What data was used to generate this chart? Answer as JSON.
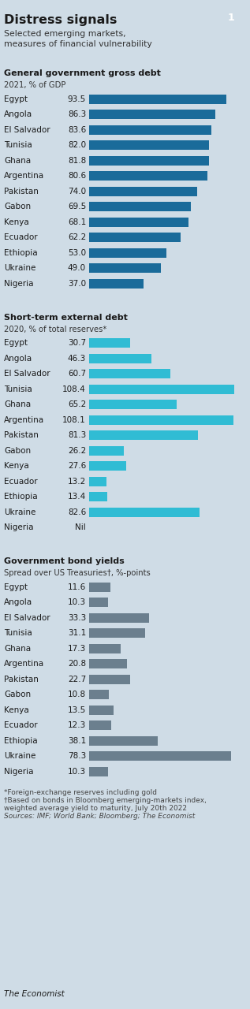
{
  "title": "Distress signals",
  "subtitle": "Selected emerging markets,\nmeasures of financial vulnerability",
  "chart_number": "1",
  "bg_color": "#cfdce6",
  "red_color": "#e03020",
  "badge_color": "#7a9db5",
  "section1": {
    "title": "General government gross debt",
    "subtitle": "2021, % of GDP",
    "bar_color": "#1a6b9a",
    "countries": [
      "Egypt",
      "Angola",
      "El Salvador",
      "Tunisia",
      "Ghana",
      "Argentina",
      "Pakistan",
      "Gabon",
      "Kenya",
      "Ecuador",
      "Ethiopia",
      "Ukraine",
      "Nigeria"
    ],
    "values": [
      93.5,
      86.3,
      83.6,
      82.0,
      81.8,
      80.6,
      74.0,
      69.5,
      68.1,
      62.2,
      53.0,
      49.0,
      37.0
    ],
    "xmax": 105
  },
  "section2": {
    "title": "Short-term external debt",
    "subtitle": "2020, % of total reserves*",
    "bar_color": "#30bcd4",
    "countries": [
      "Egypt",
      "Angola",
      "El Salvador",
      "Tunisia",
      "Ghana",
      "Argentina",
      "Pakistan",
      "Gabon",
      "Kenya",
      "Ecuador",
      "Ethiopia",
      "Ukraine",
      "Nigeria"
    ],
    "values": [
      30.7,
      46.3,
      60.7,
      108.4,
      65.2,
      108.1,
      81.3,
      26.2,
      27.6,
      13.2,
      13.4,
      82.6,
      0
    ],
    "nil_idx": 12,
    "xmax": 115
  },
  "section3": {
    "title": "Government bond yields",
    "subtitle": "Spread over US Treasuries†, %-points",
    "bar_color": "#6b7f8e",
    "countries": [
      "Egypt",
      "Angola",
      "El Salvador",
      "Tunisia",
      "Ghana",
      "Argentina",
      "Pakistan",
      "Gabon",
      "Kenya",
      "Ecuador",
      "Ethiopia",
      "Ukraine",
      "Nigeria"
    ],
    "values": [
      11.6,
      10.3,
      33.3,
      31.1,
      17.3,
      20.8,
      22.7,
      10.8,
      13.5,
      12.3,
      38.1,
      78.3,
      10.3
    ],
    "xmax": 85
  },
  "footnote_lines": [
    "*Foreign-exchange reserves including gold",
    "†Based on bonds in Bloomberg emerging-markets index,",
    "weighted average yield to maturity, July 20th 2022",
    "Sources: IMF; World Bank; Bloomberg; The Economist"
  ],
  "economist_label": "The Economist"
}
